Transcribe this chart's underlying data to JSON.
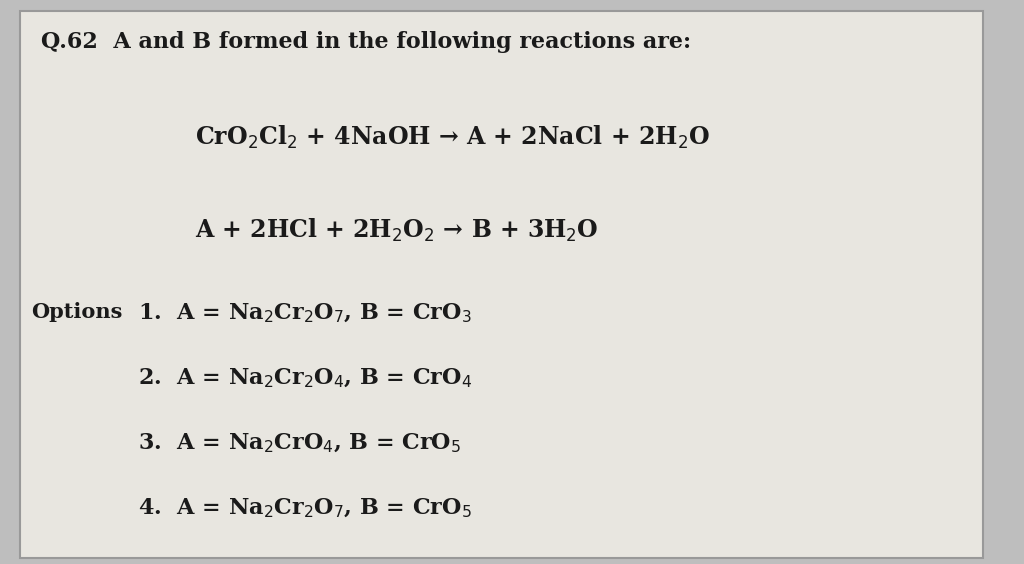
{
  "bg_color": "#bebebe",
  "box_color": "#e8e6e0",
  "title_q": "Q.62",
  "title_rest": "  A and B formed in the following reactions are:",
  "reaction1": "CrO$_2$Cl$_2$ + 4NaOH → A + 2NaCl + 2H$_2$O",
  "reaction2": "A + 2HCl + 2H$_2$O$_2$ → B + 3H$_2$O",
  "options_label": "Options",
  "opt1_num": "1. ",
  "opt1_text": "A = Na$_2$Cr$_2$O$_7$, B = CrO$_3$",
  "opt2_num": "2. ",
  "opt2_text": "A = Na$_2$Cr$_2$O$_4$, B = CrO$_4$",
  "opt3_num": "3. ",
  "opt3_text": "A = Na$_2$CrO$_4$, B = CrO$_5$",
  "opt4_num": "4. ",
  "opt4_text": "A = Na$_2$Cr$_2$O$_7$, B = CrO$_5$",
  "title_fontsize": 16,
  "reaction_fontsize": 17,
  "options_fontsize": 16,
  "text_color": "#1a1a1a"
}
